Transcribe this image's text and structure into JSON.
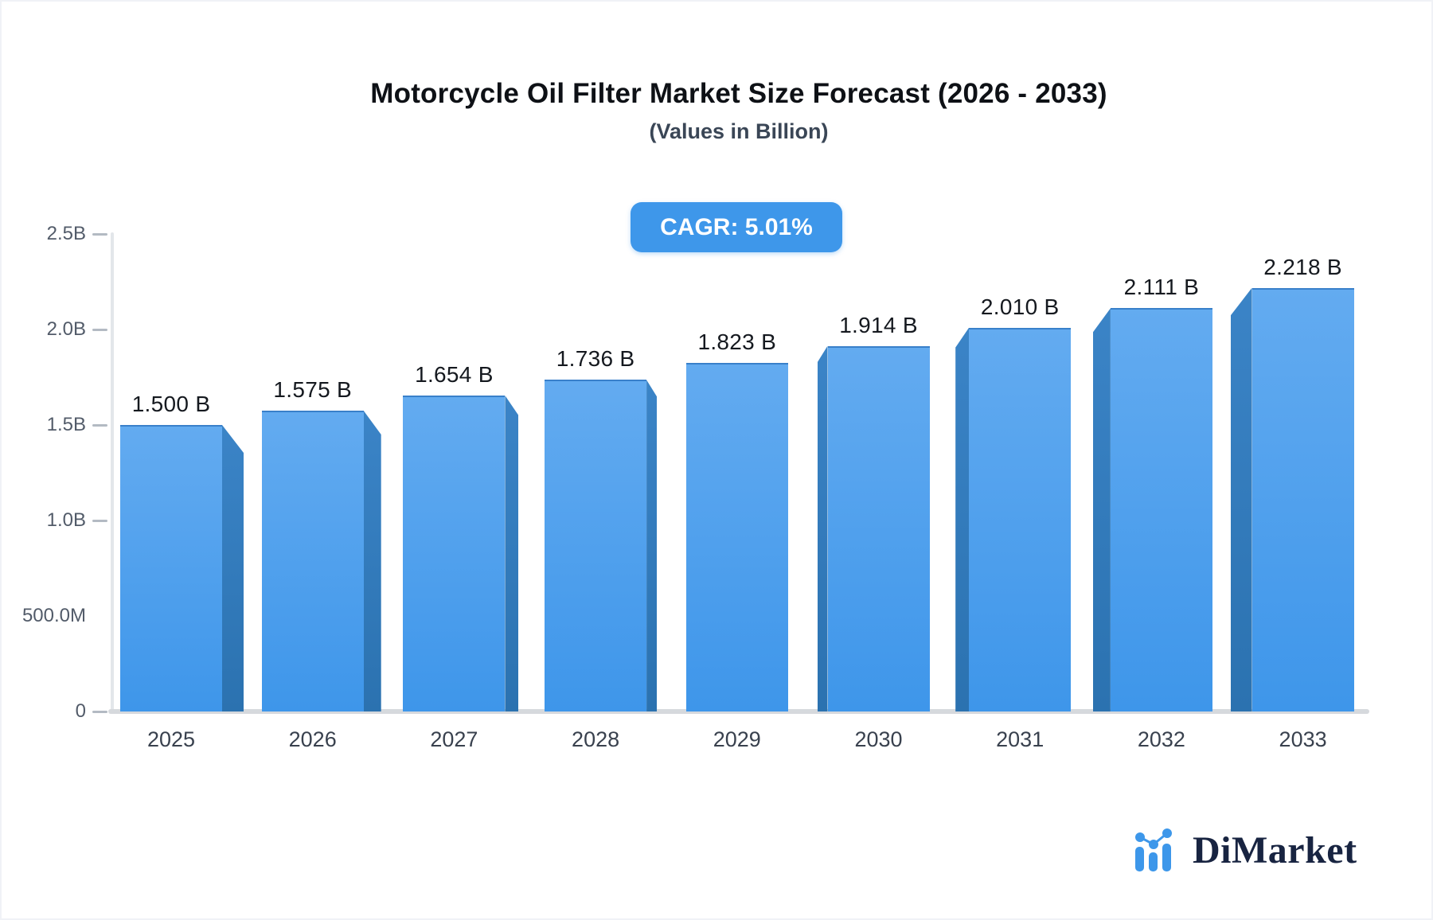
{
  "header": {
    "title": "Motorcycle Oil Filter Market Size Forecast (2026 - 2033)",
    "subtitle": "(Values in Billion)"
  },
  "badge": {
    "label": "CAGR: 5.01%",
    "bg": "#3e97ea"
  },
  "chart_data": {
    "type": "bar",
    "title": "Motorcycle Oil Filter Market Size Forecast (2026 - 2033)",
    "subtitle": "(Values in Billion)",
    "cagr_label": "CAGR: 5.01%",
    "categories": [
      "2025",
      "2026",
      "2027",
      "2028",
      "2029",
      "2030",
      "2031",
      "2032",
      "2033"
    ],
    "values": [
      1.5,
      1.575,
      1.654,
      1.736,
      1.823,
      1.914,
      2.01,
      2.111,
      2.218
    ],
    "value_labels": [
      "1.500 B",
      "1.575 B",
      "1.654 B",
      "1.736 B",
      "1.823 B",
      "1.914 B",
      "2.010 B",
      "2.111 B",
      "2.218 B"
    ],
    "ylim": [
      0,
      2.5
    ],
    "y_ticks": [
      {
        "label": "2.5B",
        "value": 2.5,
        "dash": true
      },
      {
        "label": "2.0B",
        "value": 2.0,
        "dash": true
      },
      {
        "label": "1.5B",
        "value": 1.5,
        "dash": true
      },
      {
        "label": "1.0B",
        "value": 1.0,
        "dash": true
      },
      {
        "label": "500.0M",
        "value": 0.5,
        "dash": false
      },
      {
        "label": "0",
        "value": 0.0,
        "dash": true
      }
    ],
    "grid": false,
    "legend": false,
    "colors": {
      "bar_top": "#63abf0",
      "bar_bottom": "#3e96ea",
      "bar_side_top": "#3b84c7",
      "bar_side_bottom": "#2b72b0",
      "axis_line": "#e3e6ea",
      "baseline": "#d6d9dd"
    }
  },
  "logo": {
    "text": "DiMarket",
    "icon": "mini-bar-chart-icon"
  }
}
